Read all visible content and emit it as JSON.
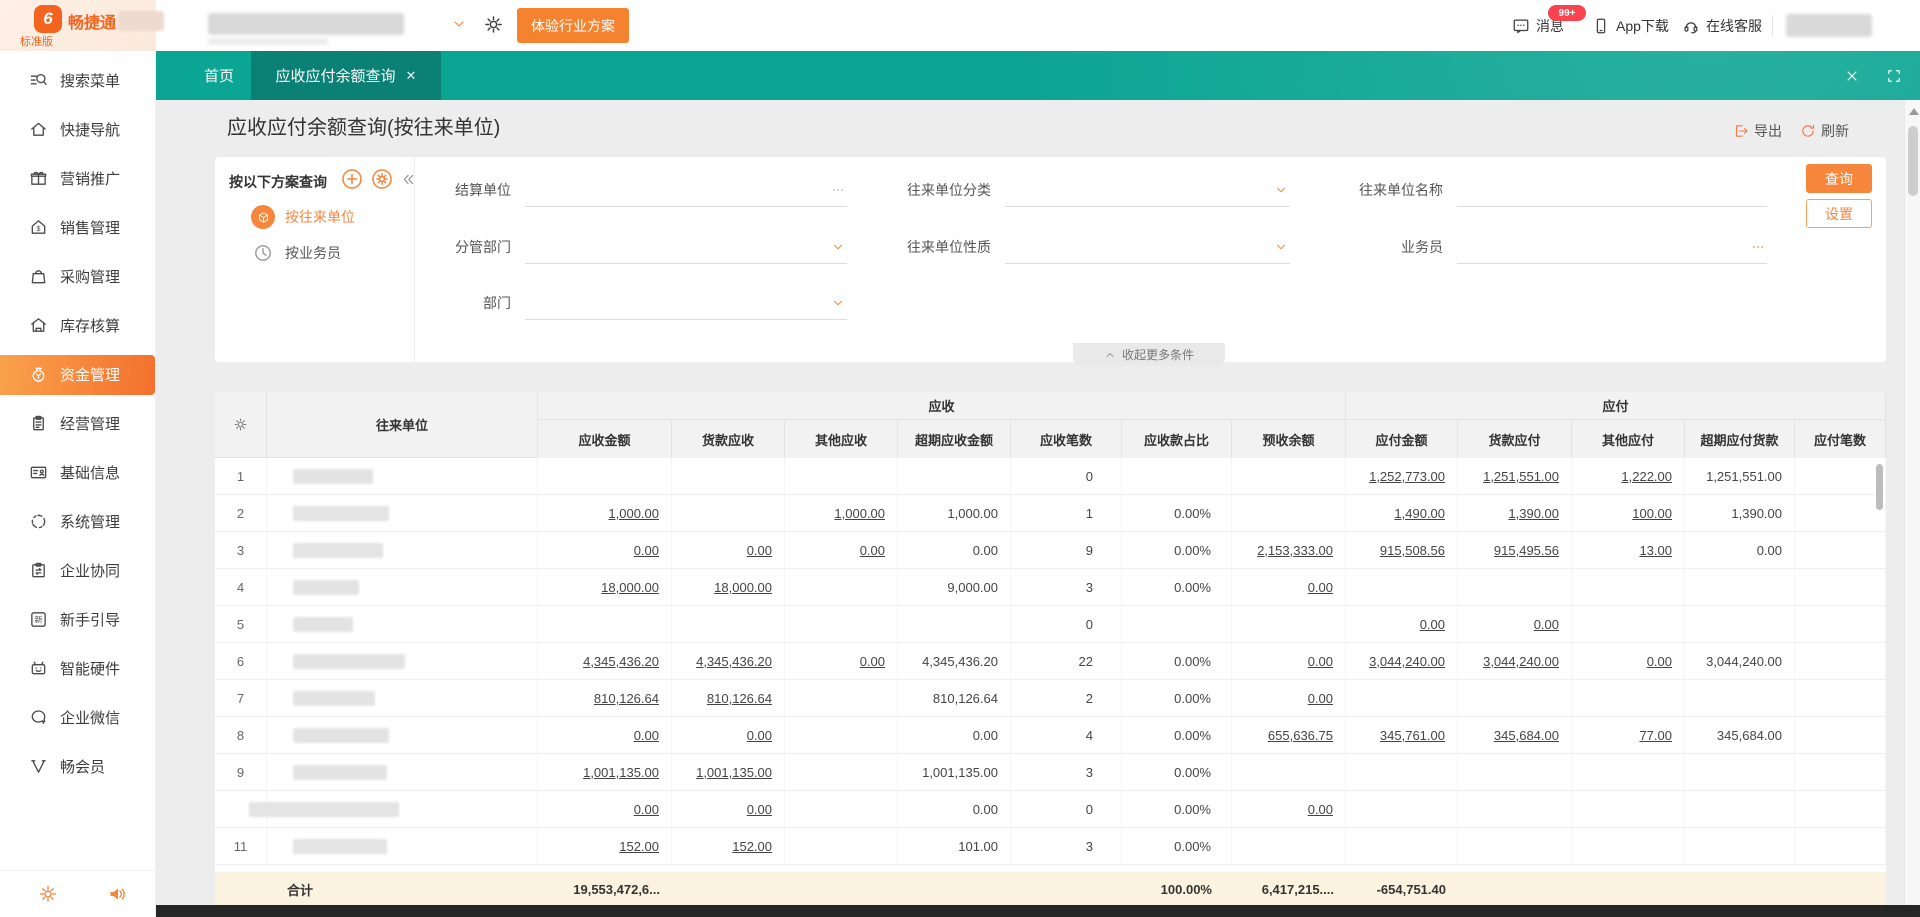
{
  "colors": {
    "accent": "#f5863b",
    "logo_orange": "#f3641e",
    "teal": "#0ba593",
    "teal_active_tab": "#0a8174",
    "badge_red": "#fb4350",
    "negative_red": "#e02020",
    "total_row_bg": "#fbf3df"
  },
  "brand": {
    "logo_text": "畅捷通",
    "edition": "标准版"
  },
  "topbar": {
    "experience_button": "体验行业方案",
    "messages_label": "消息",
    "messages_badge": "99+",
    "app_download_label": "App下载",
    "online_service_label": "在线客服"
  },
  "tabbar": {
    "tabs": [
      {
        "label": "首页"
      },
      {
        "label": "应收应付余额查询",
        "active": true,
        "closable": true
      }
    ]
  },
  "sidebar": {
    "items": [
      {
        "id": "search",
        "icon": "search-menu",
        "label": "搜索菜单"
      },
      {
        "id": "quick-nav",
        "icon": "quick-nav",
        "label": "快捷导航"
      },
      {
        "id": "marketing",
        "icon": "marketing",
        "label": "营销推广"
      },
      {
        "id": "sales",
        "icon": "sales",
        "label": "销售管理"
      },
      {
        "id": "purchase",
        "icon": "purchase",
        "label": "采购管理"
      },
      {
        "id": "inventory",
        "icon": "inventory",
        "label": "库存核算"
      },
      {
        "id": "funds",
        "icon": "funds",
        "label": "资金管理",
        "active": true
      },
      {
        "id": "operations",
        "icon": "operations",
        "label": "经营管理"
      },
      {
        "id": "base-info",
        "icon": "base-info",
        "label": "基础信息"
      },
      {
        "id": "system",
        "icon": "system",
        "label": "系统管理"
      },
      {
        "id": "collaboration",
        "icon": "collaboration",
        "label": "企业协同"
      },
      {
        "id": "newbie-guide",
        "icon": "newbie-guide",
        "label": "新手引导"
      },
      {
        "id": "smart-hardware",
        "icon": "smart-hardware",
        "label": "智能硬件"
      },
      {
        "id": "wechat-work",
        "icon": "wechat-work",
        "label": "企业微信"
      },
      {
        "id": "member",
        "icon": "member",
        "label": "畅会员"
      }
    ]
  },
  "page": {
    "title": "应收应付余额查询(按往来单位)",
    "export_label": "导出",
    "refresh_label": "刷新"
  },
  "filter": {
    "scheme_title": "按以下方案查询",
    "schemes": [
      {
        "id": "by-partner",
        "label": "按往来单位",
        "icon": "cube",
        "active": true
      },
      {
        "id": "by-salesman",
        "label": "按业务员",
        "icon": "clock",
        "active": false
      }
    ],
    "fields": [
      {
        "label": "结算单位",
        "pos": "r1 c1",
        "suffix": "ellipsis"
      },
      {
        "label": "往来单位分类",
        "pos": "r1 c2",
        "suffix": "chevron"
      },
      {
        "label": "往来单位名称",
        "pos": "r1 c3",
        "suffix": "none"
      },
      {
        "label": "分管部门",
        "pos": "r2 c1",
        "suffix": "chevron"
      },
      {
        "label": "往来单位性质",
        "pos": "r2 c2",
        "suffix": "chevron"
      },
      {
        "label": "业务员",
        "pos": "r2 c3",
        "suffix": "ellipsis-orange"
      },
      {
        "label": "部门",
        "pos": "r3 c1",
        "suffix": "chevron"
      }
    ],
    "query_button": "查询",
    "settings_button": "设置",
    "collapse_label": "收起更多条件"
  },
  "table": {
    "col_partner": "往来单位",
    "group_receivable": "应收",
    "group_payable": "应付",
    "receivable_cols": [
      "应收金额",
      "货款应收",
      "其他应收",
      "超期应收金额",
      "应收笔数",
      "应收款占比",
      "预收余额"
    ],
    "payable_cols": [
      "应付金额",
      "货款应付",
      "其他应付",
      "超期应付货款",
      "应付笔数"
    ],
    "rows": [
      {
        "idx": "1",
        "blur_w": 80,
        "cells": [
          "",
          "",
          "",
          "",
          "0",
          "",
          "",
          {
            "v": "1,252,773.00",
            "u": true
          },
          {
            "v": "1,251,551.00",
            "u": true
          },
          {
            "v": "1,222.00",
            "u": true
          },
          "1,251,551.00",
          ""
        ]
      },
      {
        "idx": "2",
        "blur_w": 96,
        "cells": [
          {
            "v": "1,000.00",
            "u": true
          },
          "",
          {
            "v": "1,000.00",
            "u": true
          },
          "1,000.00",
          "1",
          "0.00%",
          "",
          {
            "v": "1,490.00",
            "u": true
          },
          {
            "v": "1,390.00",
            "u": true
          },
          {
            "v": "100.00",
            "u": true
          },
          "1,390.00",
          ""
        ]
      },
      {
        "idx": "3",
        "blur_w": 90,
        "cells": [
          {
            "v": "0.00",
            "u": true
          },
          {
            "v": "0.00",
            "u": true
          },
          {
            "v": "0.00",
            "u": true
          },
          "0.00",
          "9",
          "0.00%",
          {
            "v": "2,153,333.00",
            "u": true
          },
          {
            "v": "915,508.56",
            "u": true
          },
          {
            "v": "915,495.56",
            "u": true
          },
          {
            "v": "13.00",
            "u": true
          },
          "0.00",
          ""
        ]
      },
      {
        "idx": "4",
        "blur_w": 66,
        "cells": [
          {
            "v": "18,000.00",
            "u": true
          },
          {
            "v": "18,000.00",
            "u": true
          },
          "",
          "9,000.00",
          "3",
          "0.00%",
          {
            "v": "0.00",
            "u": true
          },
          "",
          "",
          "",
          "",
          ""
        ]
      },
      {
        "idx": "5",
        "blur_w": 60,
        "cells": [
          "",
          "",
          "",
          "",
          "0",
          "",
          "",
          {
            "v": "0.00",
            "u": true
          },
          {
            "v": "0.00",
            "u": true
          },
          "",
          "",
          ""
        ]
      },
      {
        "idx": "6",
        "blur_w": 112,
        "cells": [
          {
            "v": "4,345,436.20",
            "u": true
          },
          {
            "v": "4,345,436.20",
            "u": true
          },
          {
            "v": "0.00",
            "u": true
          },
          "4,345,436.20",
          "22",
          "0.00%",
          {
            "v": "0.00",
            "u": true
          },
          {
            "v": "3,044,240.00",
            "u": true
          },
          {
            "v": "3,044,240.00",
            "u": true
          },
          {
            "v": "0.00",
            "u": true
          },
          "3,044,240.00",
          ""
        ]
      },
      {
        "idx": "7",
        "blur_w": 82,
        "cells": [
          {
            "v": "810,126.64",
            "u": true
          },
          {
            "v": "810,126.64",
            "u": true
          },
          "",
          "810,126.64",
          "2",
          "0.00%",
          {
            "v": "0.00",
            "u": true
          },
          "",
          "",
          "",
          "",
          ""
        ]
      },
      {
        "idx": "8",
        "blur_w": 96,
        "cells": [
          {
            "v": "0.00",
            "u": true
          },
          {
            "v": "0.00",
            "u": true
          },
          "",
          "0.00",
          "4",
          "0.00%",
          {
            "v": "655,636.75",
            "u": true
          },
          {
            "v": "345,761.00",
            "u": true
          },
          {
            "v": "345,684.00",
            "u": true
          },
          {
            "v": "77.00",
            "u": true
          },
          "345,684.00",
          ""
        ]
      },
      {
        "idx": "9",
        "blur_w": 94,
        "cells": [
          {
            "v": "1,001,135.00",
            "u": true
          },
          {
            "v": "1,001,135.00",
            "u": true
          },
          "",
          "1,001,135.00",
          "3",
          "0.00%",
          "",
          "",
          "",
          "",
          "",
          ""
        ]
      },
      {
        "idx": "",
        "blur_w": 150,
        "wide": true,
        "cells": [
          {
            "v": "0.00",
            "u": true
          },
          {
            "v": "0.00",
            "u": true
          },
          "",
          "0.00",
          "0",
          "0.00%",
          {
            "v": "0.00",
            "u": true
          },
          "",
          "",
          "",
          "",
          ""
        ]
      },
      {
        "idx": "11",
        "blur_w": 94,
        "cells": [
          {
            "v": "152.00",
            "u": true
          },
          {
            "v": "152.00",
            "u": true
          },
          "",
          "101.00",
          "3",
          "0.00%",
          "",
          "",
          "",
          "",
          "",
          ""
        ]
      }
    ],
    "total": {
      "label": "合计",
      "receivable_total": "19,553,472,6...",
      "ratio_total": "100.00%",
      "advance_total": "6,417,215....",
      "payable_total": "-654,751.40"
    }
  }
}
